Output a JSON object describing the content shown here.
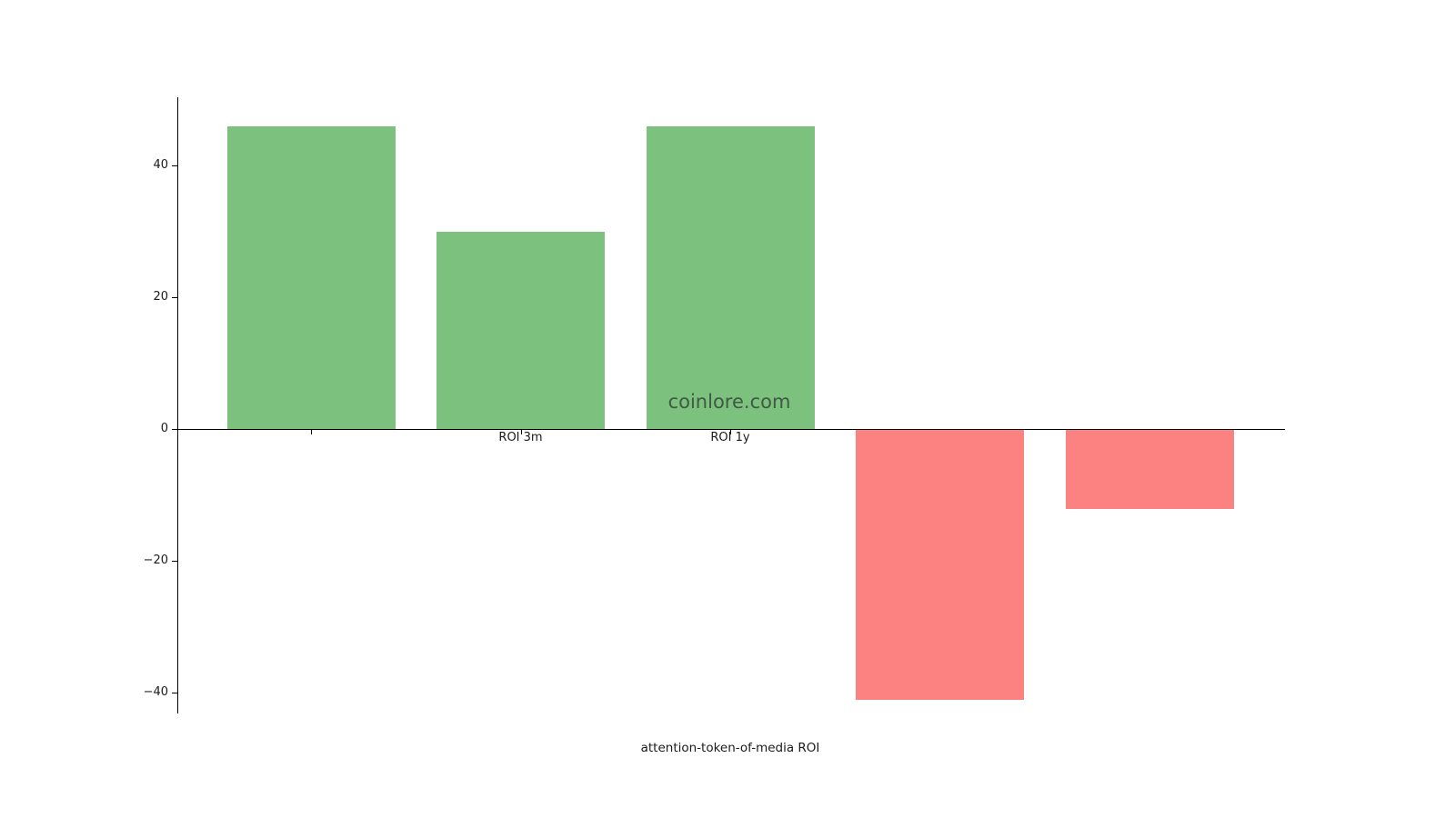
{
  "watermark": "coinlore.com",
  "chart_data": {
    "type": "bar",
    "title": "attention-token-of-media ROI",
    "categories": [
      "",
      "ROI 3m",
      "ROI 1y",
      "",
      ""
    ],
    "values": [
      46,
      30,
      46,
      -41,
      -12
    ],
    "yticks": [
      40,
      20,
      0,
      -20,
      -40
    ],
    "ytick_labels": [
      "40",
      "20",
      "0",
      "−20",
      "−40"
    ],
    "ylim": [
      -43,
      50
    ],
    "xlabel": "",
    "ylabel": "",
    "grid": false,
    "legend_position": "none",
    "colors": {
      "positive": "#7cc17e",
      "negative": "#fc8181",
      "axis": "#000000",
      "tick_text": "#1a1a1a",
      "watermark": "#3f5a43"
    }
  }
}
